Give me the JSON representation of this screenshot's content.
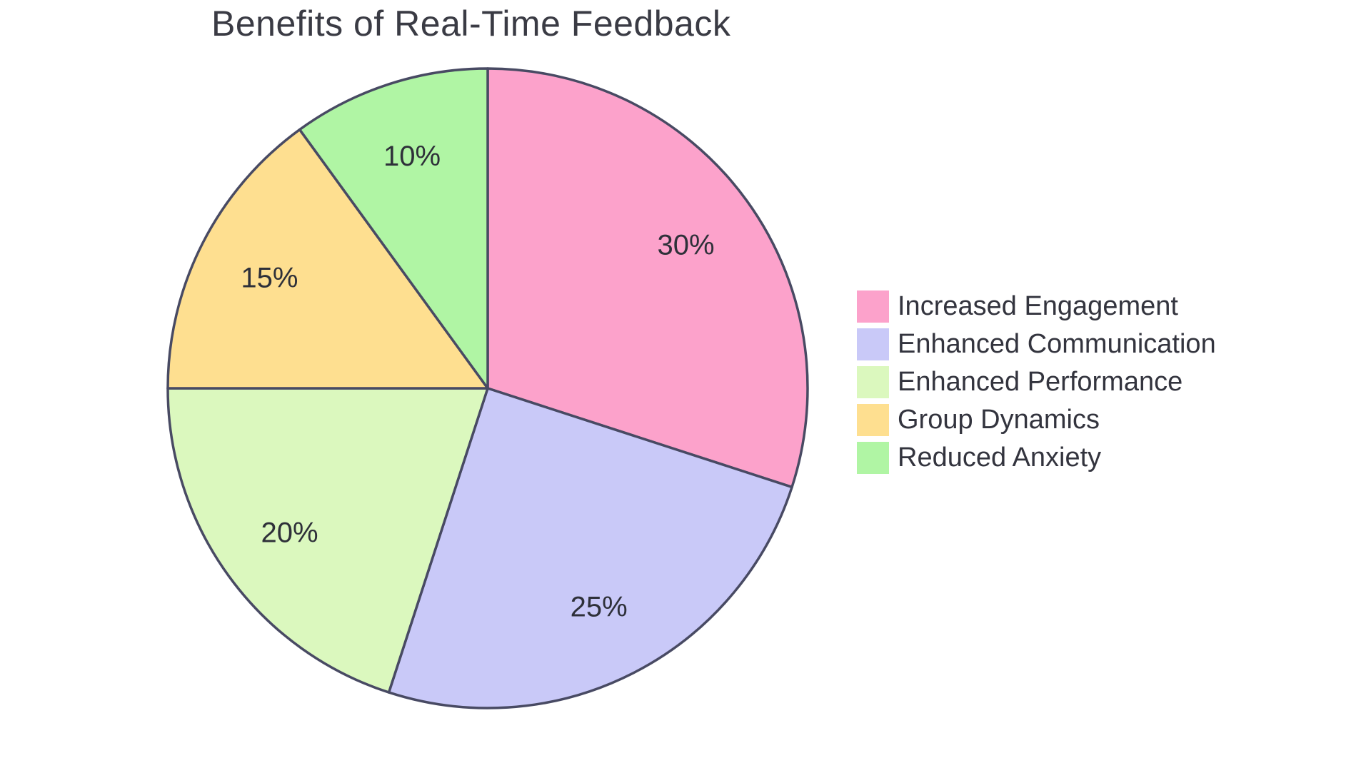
{
  "chart_data": {
    "type": "pie",
    "title": "Benefits of Real-Time Feedback",
    "labels": [
      "Increased Engagement",
      "Enhanced Communication",
      "Enhanced Performance",
      "Group Dynamics",
      "Reduced Anxiety"
    ],
    "values": [
      30,
      25,
      20,
      15,
      10
    ],
    "value_labels": [
      "30%",
      "25%",
      "20%",
      "15%",
      "10%"
    ],
    "colors": [
      "#FCA2CB",
      "#C9C9F8",
      "#DBF8BE",
      "#FEDF90",
      "#B0F5A4"
    ],
    "slice_border_color": "#484A63",
    "slice_label_color": "#2E3039",
    "title_color": "#3A3B44",
    "legend_text_color": "#33343E",
    "legend_position": "right",
    "start_angle_deg": 0,
    "direction": "clockwise",
    "grid": false
  }
}
